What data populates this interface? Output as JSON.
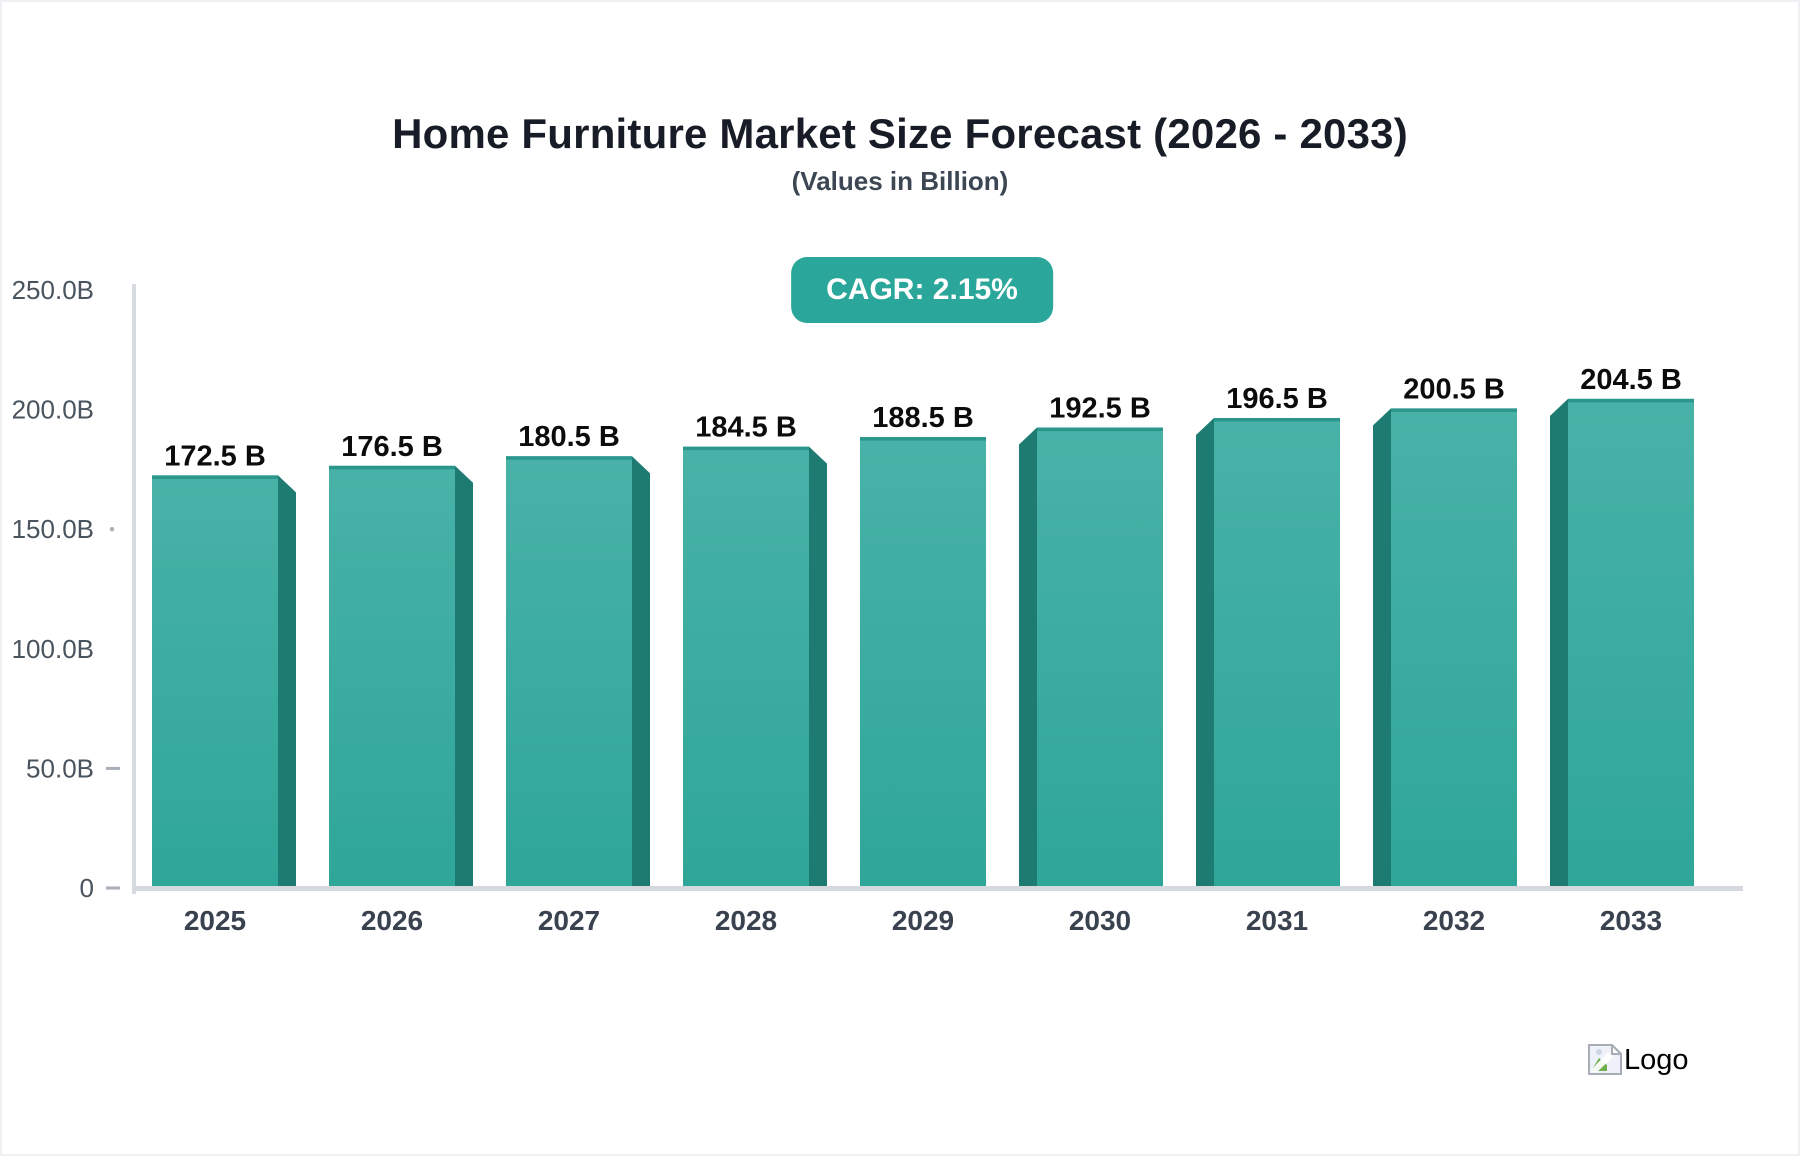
{
  "header": {
    "title": "Home Furniture Market Size Forecast (2026 - 2033)",
    "subtitle": "(Values in Billion)",
    "cagr_badge": "CAGR: 2.15%"
  },
  "chart_data": {
    "type": "bar",
    "title": "Home Furniture Market Size Forecast (2026 - 2033)",
    "subtitle": "(Values in Billion)",
    "annotation": "CAGR: 2.15%",
    "categories": [
      "2025",
      "2026",
      "2027",
      "2028",
      "2029",
      "2030",
      "2031",
      "2032",
      "2033"
    ],
    "values": [
      172.5,
      176.5,
      180.5,
      184.5,
      188.5,
      192.5,
      196.5,
      200.5,
      204.5
    ],
    "bar_labels": [
      "172.5 B",
      "176.5 B",
      "180.5 B",
      "184.5 B",
      "188.5 B",
      "192.5 B",
      "196.5 B",
      "200.5 B",
      "204.5 B"
    ],
    "unit": "Billion",
    "ylim": [
      0,
      250
    ],
    "y_ticks": [
      {
        "label": "250.0B",
        "value": 250,
        "tick": "none"
      },
      {
        "label": "200.0B",
        "value": 200,
        "tick": "none"
      },
      {
        "label": "150.0B",
        "value": 150,
        "tick": "dot"
      },
      {
        "label": "100.0B",
        "value": 100,
        "tick": "none"
      },
      {
        "label": "50.0B",
        "value": 50,
        "tick": "dash"
      },
      {
        "label": "0",
        "value": 0,
        "tick": "dash"
      }
    ],
    "grid": false,
    "legend": "none",
    "colors": {
      "bar_face_top": "#49b2a8",
      "bar_face_bottom": "#2ea698",
      "bar_side": "#1e7b71",
      "bar_top_edge": "#2b968b",
      "badge_bg": "#2aa79a",
      "axis_line": "#d7dade",
      "baseline": "#d5d8dd",
      "tick": "#a9aeb7",
      "y_label": "#49545f",
      "x_label": "#39424e",
      "value_label": "#0b0c0e"
    }
  },
  "logo": {
    "alt": "Logo",
    "icon": "broken-image-icon"
  }
}
